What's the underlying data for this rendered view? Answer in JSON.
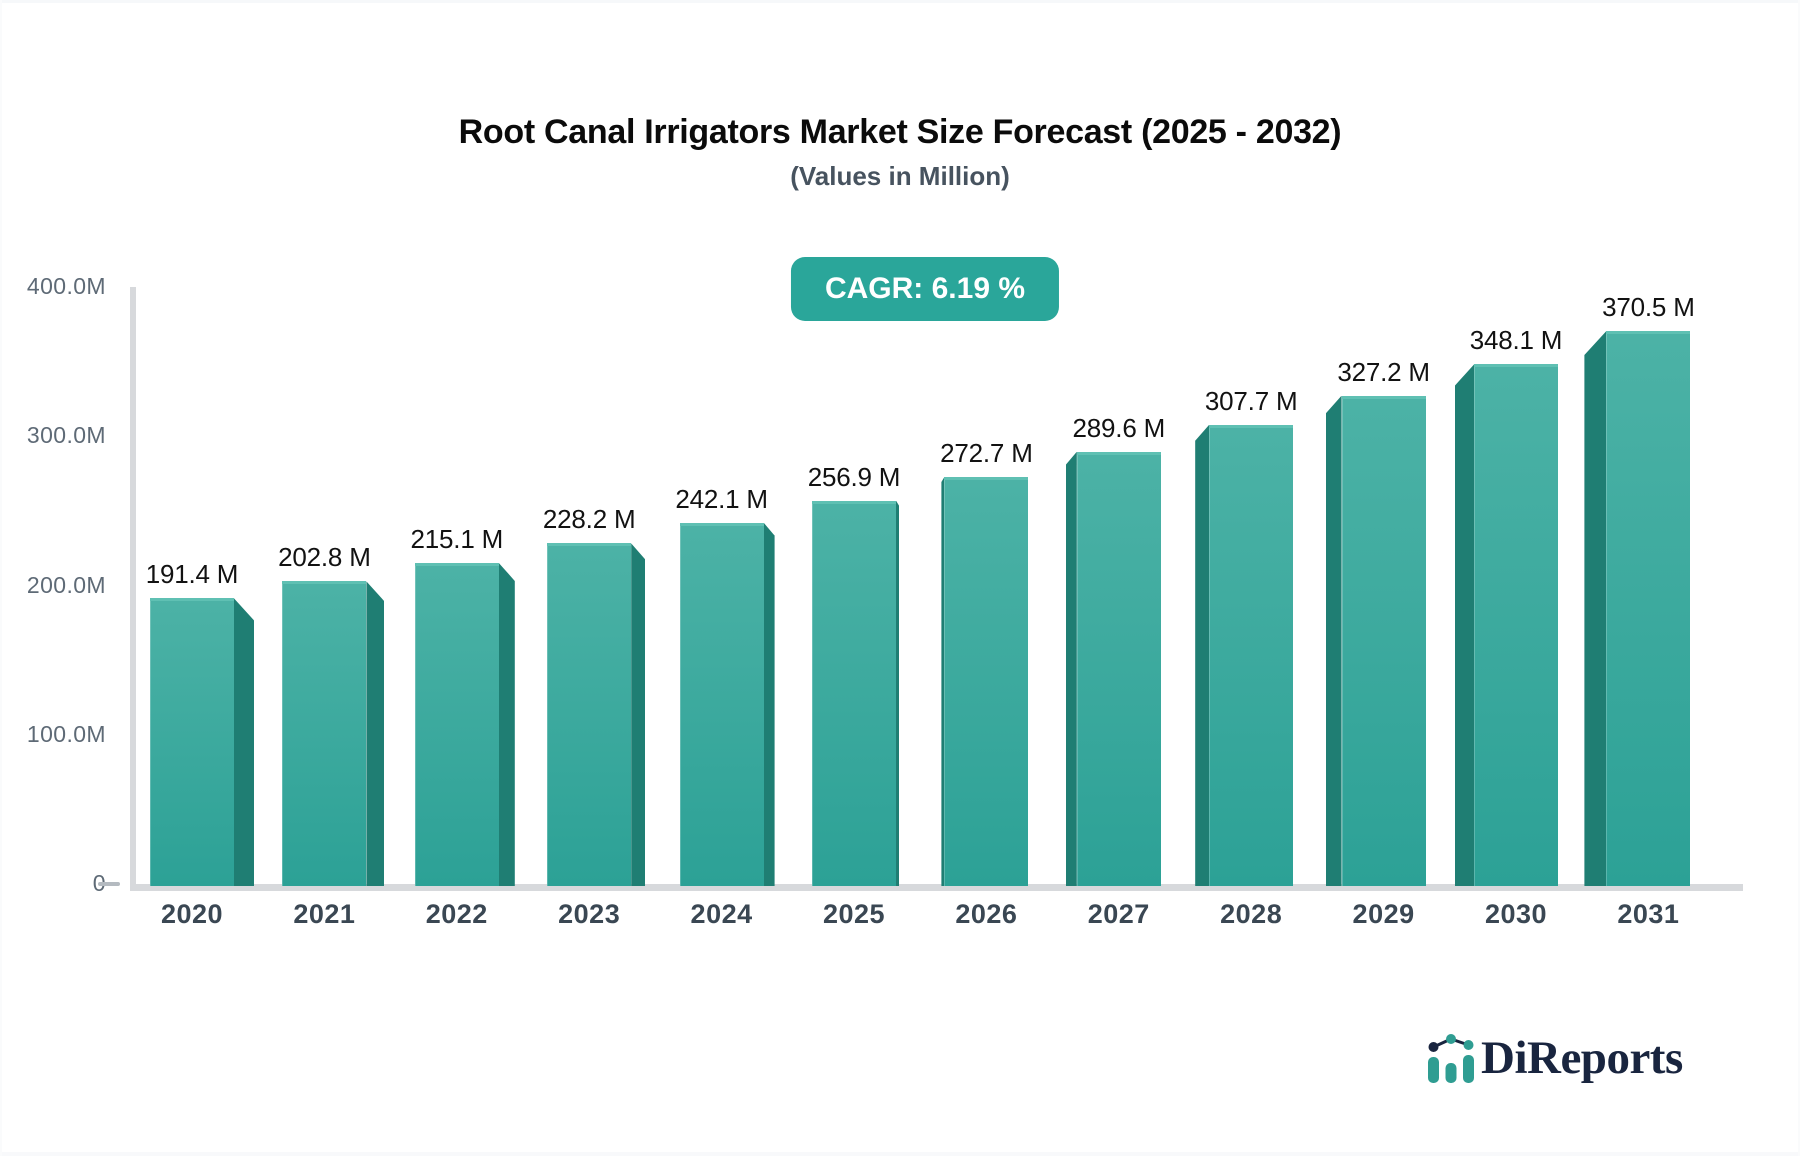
{
  "header": {
    "title": "Root Canal Irrigators Market Size Forecast (2025 - 2032)",
    "subtitle": "(Values in Million)",
    "cagr_badge": "CAGR: 6.19 %"
  },
  "chart_data": {
    "type": "bar",
    "title": "Root Canal Irrigators Market Size Forecast (2025 - 2032)",
    "subtitle": "(Values in Million)",
    "unit": "Million",
    "cagr_percent": 6.19,
    "categories": [
      "2020",
      "2021",
      "2022",
      "2023",
      "2024",
      "2025",
      "2026",
      "2027",
      "2028",
      "2029",
      "2030",
      "2031"
    ],
    "values": [
      191.4,
      202.8,
      215.1,
      228.2,
      242.1,
      256.9,
      272.7,
      289.6,
      307.7,
      327.2,
      348.1,
      370.5
    ],
    "value_labels": [
      "191.4 M",
      "202.8 M",
      "215.1 M",
      "228.2 M",
      "242.1 M",
      "256.9 M",
      "272.7 M",
      "289.6 M",
      "307.7 M",
      "327.2 M",
      "348.1 M",
      "370.5 M"
    ],
    "y_axis": {
      "max": 400,
      "ticks": [
        {
          "value": 400,
          "label": "400.0M"
        },
        {
          "value": 300,
          "label": "300.0M"
        },
        {
          "value": 200,
          "label": "200.0M"
        },
        {
          "value": 100,
          "label": "100.0M"
        },
        {
          "value": 0,
          "label": "0"
        }
      ]
    },
    "grid": false,
    "legend": false,
    "style_3d": true
  },
  "branding": {
    "logo_text": "DiReports",
    "logo_icon": "bar-chart-trend-icon"
  },
  "colors": {
    "accent_badge": "#2aa69a",
    "bar_face_top": "#4cb2a6",
    "bar_face_bottom": "#2ca196",
    "bar_top_edge": "#5fc0b3",
    "bar_side": "#1f7e73",
    "axis_line": "#d7d9dc",
    "tick_dash": "#b4bac0",
    "y_label_text": "#5e6a76",
    "x_label_text": "#3a4753",
    "value_label_text": "#121212",
    "logo_navy": "#19253f",
    "logo_teal": "#2f9d92"
  }
}
